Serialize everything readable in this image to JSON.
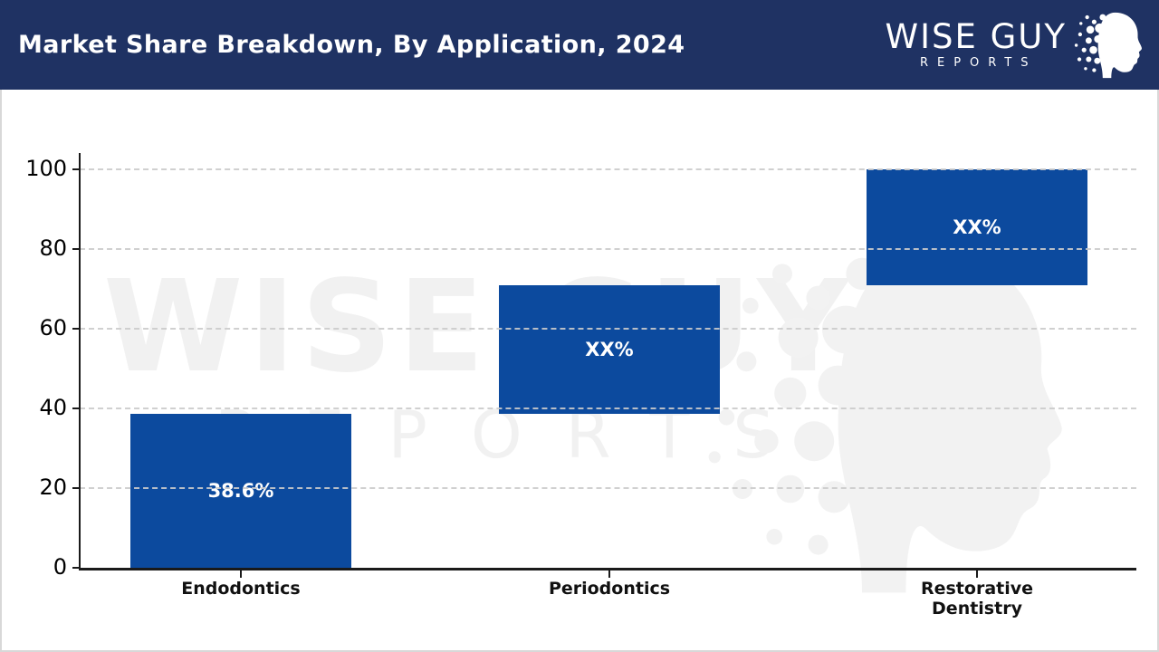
{
  "header": {
    "title": "Market Share Breakdown, By Application, 2024",
    "logo": {
      "line1": "WISE GUY",
      "line2": "REPORTS"
    }
  },
  "watermark": {
    "line1": "WISE GUY",
    "line2": "REPORTS"
  },
  "colors": {
    "header_bg": "#1f3263",
    "bar": "#0c4a9e",
    "bar_label": "#ffffff",
    "axis": "#1a1a1a",
    "grid": "#cbcbcb",
    "tick_text": "#000000",
    "category_text": "#111111",
    "canvas_border": "#d8d8d8",
    "watermark": "#f1f1f1"
  },
  "chart_data": {
    "type": "bar",
    "subtype": "waterfall",
    "title": "Market Share Breakdown, By Application, 2024",
    "categories": [
      "Endodontics",
      "Periodontics",
      "Restorative Dentistry"
    ],
    "series": [
      {
        "name": "Endodontics",
        "start": 0,
        "end": 38.6,
        "label": "38.6%"
      },
      {
        "name": "Periodontics",
        "start": 38.6,
        "end": 70.9,
        "label": "XX%"
      },
      {
        "name": "Restorative Dentistry",
        "start": 70.9,
        "end": 100,
        "label": "XX%"
      }
    ],
    "xlabel": "",
    "ylabel": "",
    "ylim": [
      0,
      104
    ],
    "yticks": [
      0,
      20,
      40,
      60,
      80,
      100
    ],
    "grid": "horizontal-dashed",
    "legend": "none"
  }
}
